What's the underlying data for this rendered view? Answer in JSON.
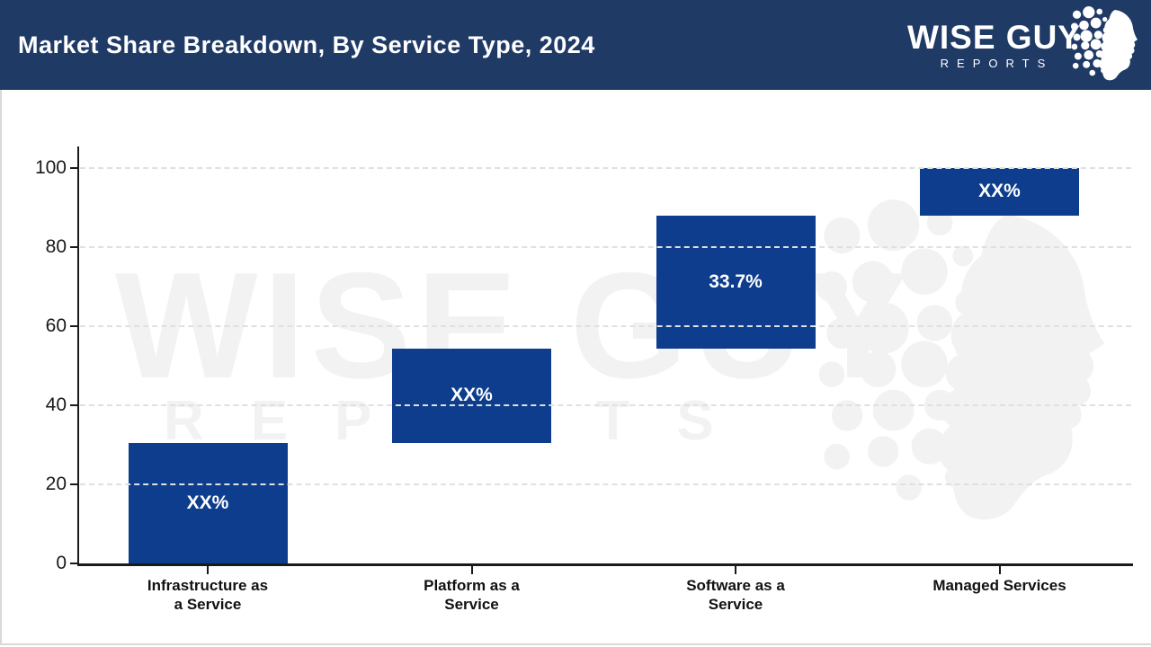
{
  "header": {
    "title": "Market Share Breakdown, By Service Type, 2024",
    "background_color": "#203a66",
    "brand": {
      "line1": "WISE GUY",
      "line2": "REPORTS",
      "icon": "face-dots-logo"
    }
  },
  "watermark": {
    "line1": "WISE GUY",
    "line2": "REPORTS",
    "icon": "face-dots-watermark",
    "color": "#f2f2f3"
  },
  "chart_data": {
    "type": "bar",
    "subtype": "floating-waterfall",
    "title": "Market Share Breakdown, By Service Type, 2024",
    "categories": [
      "Infrastructure as\na Service",
      "Platform as a\nService",
      "Software as a\nService",
      "Managed Services"
    ],
    "series": [
      {
        "name": "Market share (%)",
        "segments": [
          {
            "category": "Infrastructure as a Service",
            "label": "XX%",
            "start": 0,
            "end": 30.5,
            "value_hidden": true
          },
          {
            "category": "Platform as a Service",
            "label": "XX%",
            "start": 30.5,
            "end": 54.3,
            "value_hidden": true
          },
          {
            "category": "Software as a Service",
            "label": "33.7%",
            "start": 54.3,
            "end": 88,
            "value_hidden": false,
            "value": 33.7
          },
          {
            "category": "Managed Services",
            "label": "XX%",
            "start": 88,
            "end": 100,
            "value_hidden": true
          }
        ]
      }
    ],
    "ylim": [
      0,
      100
    ],
    "yticks": [
      0,
      20,
      40,
      60,
      80,
      100
    ],
    "xlabel": "",
    "ylabel": "",
    "legend": "none",
    "grid": "horizontal dashed, drawn above bars",
    "bar_color": "#0d3d8c",
    "bar_label_color": "#ffffff",
    "grid_color": "#e0e0e0",
    "axis_color": "#1a1a1a"
  }
}
